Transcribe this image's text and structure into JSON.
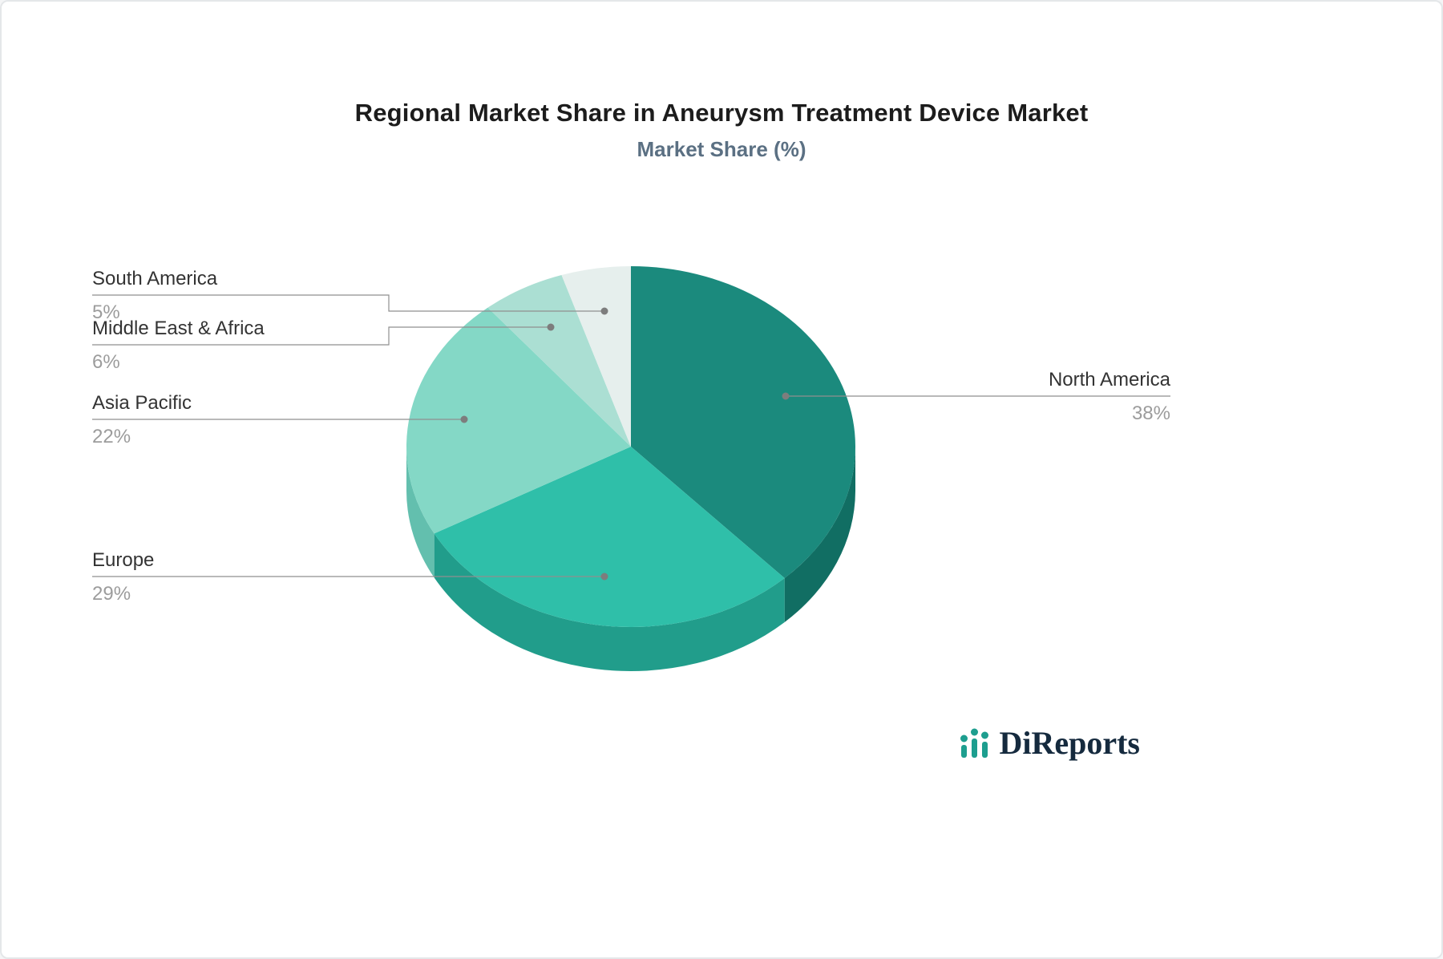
{
  "title": "Regional Market Share in Aneurysm Treatment Device Market",
  "subtitle": "Market Share (%)",
  "brand": {
    "name": "DiReports"
  },
  "chart_data": {
    "type": "pie",
    "title": "Regional Market Share in Aneurysm Treatment Device Market",
    "subtitle": "Market Share (%)",
    "unit": "%",
    "effect": "3d",
    "start_angle": "12-oclock",
    "direction": "clockwise",
    "legend_position": "none",
    "labels": "callout",
    "segments": [
      {
        "label": "North America",
        "value": 38,
        "value_label": "38%",
        "color": "#1b8a7d",
        "side_color": "#116e63"
      },
      {
        "label": "Europe",
        "value": 29,
        "value_label": "29%",
        "color": "#2fbfa9",
        "side_color": "#219d8b"
      },
      {
        "label": "Asia Pacific",
        "value": 22,
        "value_label": "22%",
        "color": "#84d8c6",
        "side_color": "#63bfae"
      },
      {
        "label": "Middle East & Africa",
        "value": 6,
        "value_label": "6%",
        "color": "#abdfd3",
        "side_color": "#8cc6ba"
      },
      {
        "label": "South America",
        "value": 5,
        "value_label": "5%",
        "color": "#e6efed",
        "side_color": "#c6d9d5"
      }
    ],
    "callout_line_color": "#8f8f8f",
    "callout_dot_color": "#7d7d7d"
  }
}
